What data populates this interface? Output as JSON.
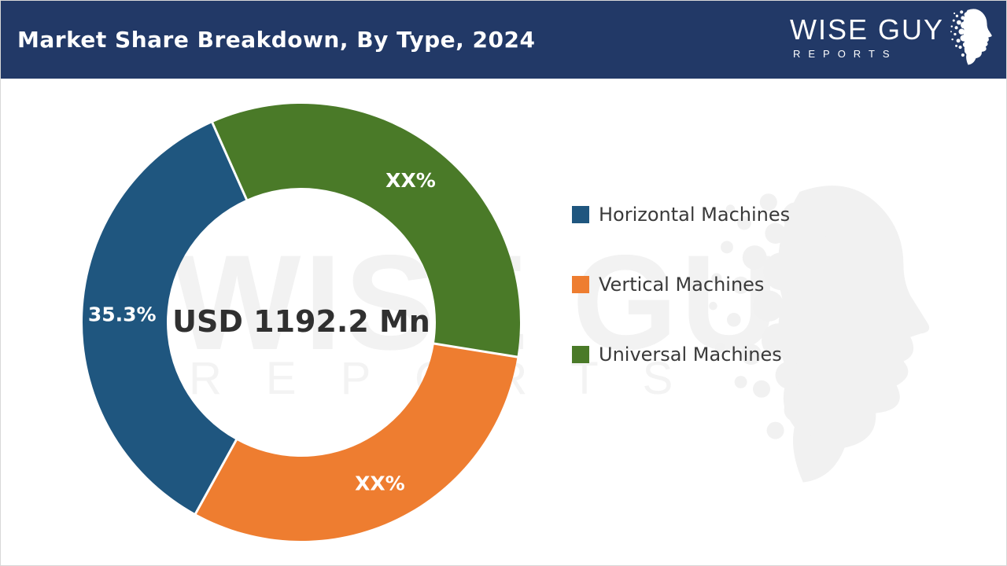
{
  "header": {
    "title": "Market Share Breakdown, By Type, 2024",
    "bg_color": "#223967",
    "logo": {
      "line1": "WISE GUY",
      "line2": "REPORTS",
      "icon": "dotted-face-profile-icon"
    }
  },
  "watermark": {
    "line1": "WISE GUY",
    "line2": "REPORTS",
    "icon": "dotted-face-profile-icon",
    "color": "#f2f2f2"
  },
  "chart_data": {
    "type": "pie",
    "subtype": "donut",
    "title": "Market Share Breakdown, By Type, 2024",
    "center_label": "USD 1192.2 Mn",
    "units": "percent of market share",
    "start_angle_deg": 114,
    "direction": "clockwise",
    "draw_order_clockwise": [
      2,
      1,
      0
    ],
    "legend_position": "right",
    "segments": [
      {
        "name": "Horizontal Machines",
        "display_label": "35.3%",
        "value_pct": 35.3,
        "value_shown": true,
        "color": "#1F567F"
      },
      {
        "name": "Vertical Machines",
        "display_label": "XX%",
        "value_pct": 30.5,
        "value_shown": false,
        "color": "#EE7D30"
      },
      {
        "name": "Universal Machines",
        "display_label": "XX%",
        "value_pct": 34.2,
        "value_shown": false,
        "color": "#4A7A28"
      }
    ]
  }
}
